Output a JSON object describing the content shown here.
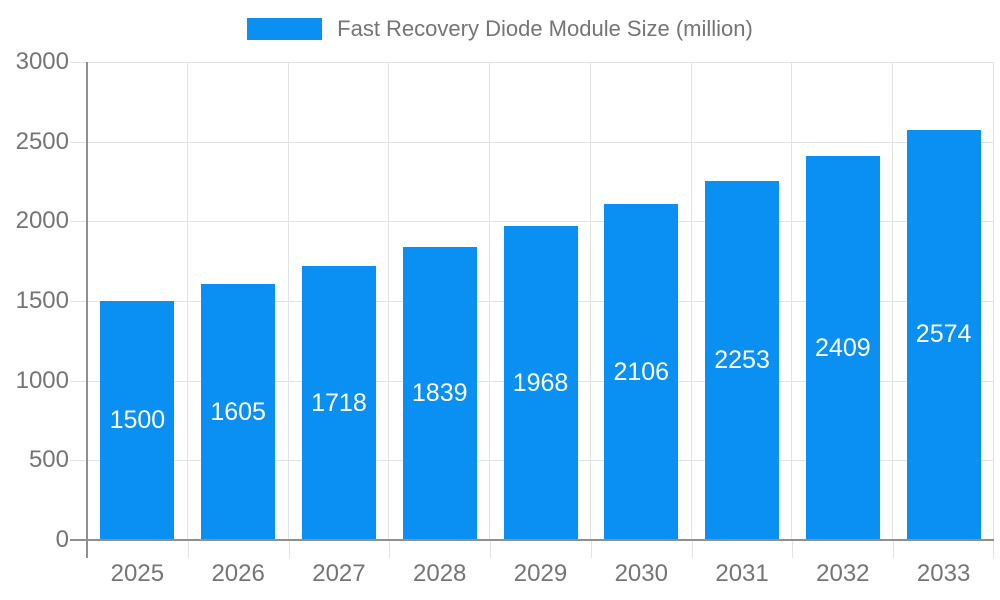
{
  "legend": {
    "label": "Fast Recovery Diode Module Size (million)"
  },
  "chart_data": {
    "type": "bar",
    "title": "Fast Recovery Diode Module Size (million)",
    "categories": [
      "2025",
      "2026",
      "2027",
      "2028",
      "2029",
      "2030",
      "2031",
      "2032",
      "2033"
    ],
    "values": [
      1500,
      1605,
      1718,
      1839,
      1968,
      2106,
      2253,
      2409,
      2574
    ],
    "xlabel": "",
    "ylabel": "",
    "ylim": [
      0,
      3000
    ],
    "yticks": [
      0,
      500,
      1000,
      1500,
      2000,
      2500,
      3000
    ],
    "grid": true,
    "legend_position": "top-center",
    "bar_label_position": "inside-center",
    "colors": {
      "bar": "#0A8FF2",
      "bar_label": "#FFFFFF",
      "axis_text": "#757575",
      "axis_line": "#8F8F8F",
      "gridline": "#E3E3E3",
      "background": "#FFFFFF"
    }
  }
}
